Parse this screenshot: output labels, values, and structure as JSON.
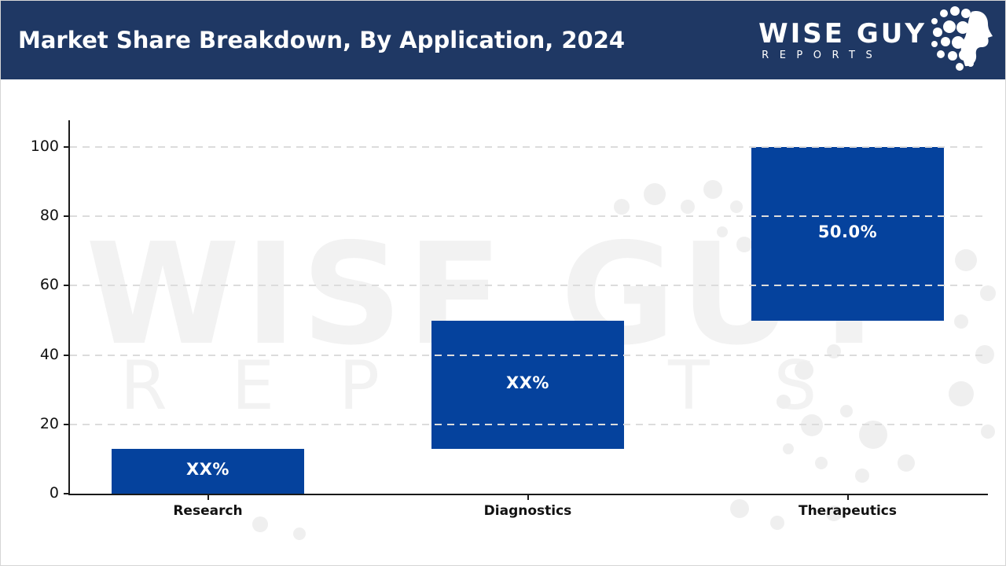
{
  "header": {
    "title": "Market Share Breakdown, By Application, 2024",
    "logo": {
      "line1": "WISE GUY",
      "line2": "REPORTS"
    }
  },
  "watermark": {
    "line1": "WISE GUY",
    "line2": "REPORTS"
  },
  "icons": {
    "logo_face": "dotted-face-profile"
  },
  "colors": {
    "header_bg": "#1f3864",
    "bar": "#05429d",
    "bar_label": "#ffffff",
    "grid": "#dcdcdc",
    "axis": "#1a1a1a",
    "watermark": "#f2f2f2",
    "border": "#d6d6d6"
  },
  "chart_data": {
    "type": "bar",
    "variant": "waterfall",
    "title": "Market Share Breakdown, By Application, 2024",
    "categories": [
      "Research",
      "Diagnostics",
      "Therapeutics"
    ],
    "segments": [
      {
        "category": "Research",
        "start": 0,
        "end": 13,
        "label": "XX%"
      },
      {
        "category": "Diagnostics",
        "start": 13,
        "end": 50,
        "label": "XX%"
      },
      {
        "category": "Therapeutics",
        "start": 50,
        "end": 100,
        "label": "50.0%"
      }
    ],
    "yticks": [
      0,
      20,
      40,
      60,
      80,
      100
    ],
    "ylim": [
      0,
      105
    ],
    "xlabel": "",
    "ylabel": "",
    "grid": "horizontal-dashed",
    "grid_above_bars": true,
    "legend": "none"
  }
}
